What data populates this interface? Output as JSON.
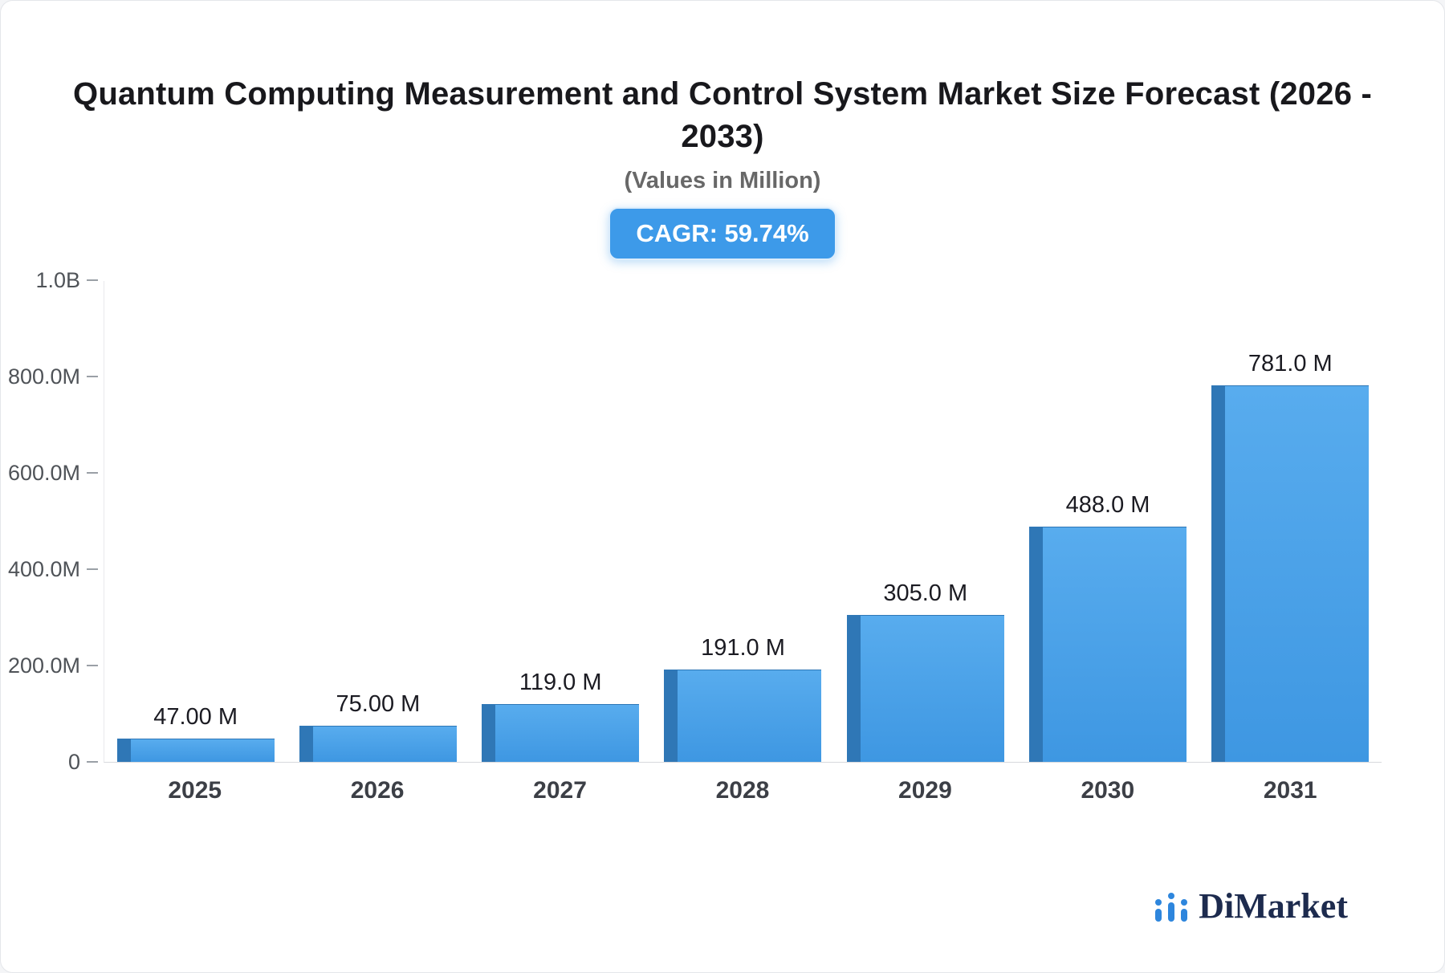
{
  "header": {
    "title": "Quantum Computing Measurement and Control System Market Size Forecast (2026 - 2033)",
    "subtitle": "(Values in Million)",
    "cagr_badge": "CAGR: 59.74%"
  },
  "chart_data": {
    "type": "bar",
    "title": "Quantum Computing Measurement and Control System Market Size Forecast (2026 - 2033)",
    "subtitle": "(Values in Million)",
    "categories": [
      "2025",
      "2026",
      "2027",
      "2028",
      "2029",
      "2030",
      "2031"
    ],
    "values": [
      47,
      75,
      119,
      191,
      305,
      488,
      781
    ],
    "value_labels": [
      "47.00 M",
      "75.00 M",
      "119.0 M",
      "191.0 M",
      "305.0 M",
      "488.0 M",
      "781.0 M"
    ],
    "ylim": [
      0,
      1000
    ],
    "yticks": [
      {
        "label": "0",
        "value": 0
      },
      {
        "label": "200.0M",
        "value": 200
      },
      {
        "label": "400.0M",
        "value": 400
      },
      {
        "label": "600.0M",
        "value": 600
      },
      {
        "label": "800.0M",
        "value": 800
      },
      {
        "label": "1.0B",
        "value": 1000
      }
    ],
    "grid": "off",
    "legend": "none",
    "colors": {
      "bar_light": "#58acee",
      "bar_main": "#3e97e2",
      "bar_dark": "#2f77b6",
      "badge_bg": "#3d9ae9"
    }
  },
  "branding": {
    "logo_text": "DiMarket",
    "logo_icon": "bar-chart-icon",
    "logo_color": "#1d2b4e",
    "icon_color": "#2e86dd"
  }
}
